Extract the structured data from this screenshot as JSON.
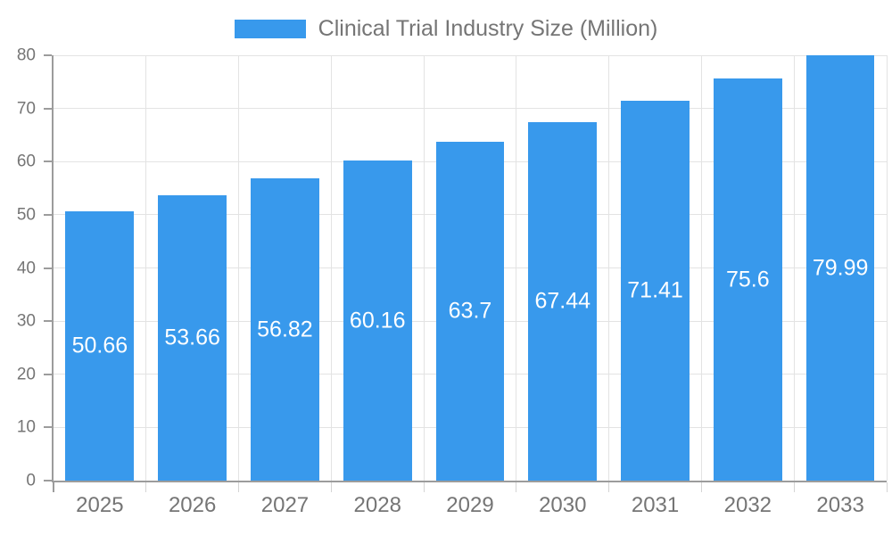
{
  "legend": {
    "label": "Clinical Trial Industry Size (Million)"
  },
  "chart_data": {
    "type": "bar",
    "title": "Clinical Trial Industry Size (Million)",
    "categories": [
      "2025",
      "2026",
      "2027",
      "2028",
      "2029",
      "2030",
      "2031",
      "2032",
      "2033"
    ],
    "values": [
      50.66,
      53.66,
      56.82,
      60.16,
      63.7,
      67.44,
      71.41,
      75.6,
      79.99
    ],
    "value_labels": [
      "50.66",
      "53.66",
      "56.82",
      "60.16",
      "63.7",
      "67.44",
      "71.41",
      "75.6",
      "79.99"
    ],
    "yticks": [
      0,
      10,
      20,
      30,
      40,
      50,
      60,
      70,
      80
    ],
    "ylim": [
      0,
      80
    ],
    "xlabel": "",
    "ylabel": "",
    "grid": true,
    "legend_position": "top-center",
    "bar_color": "#3899EC",
    "value_label_color": "#FFFFFF",
    "axis_label_color": "#757575",
    "grid_color": "#E3E3E3",
    "axis_line_color": "#9C9C9C"
  }
}
